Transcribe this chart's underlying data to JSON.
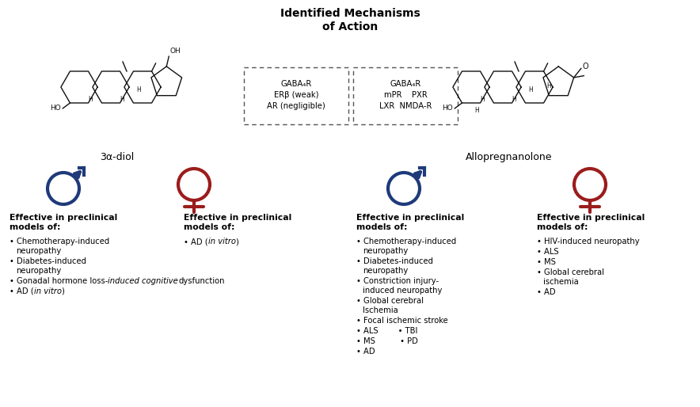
{
  "background_color": "#ffffff",
  "title": "Identified Mechanisms\nof Action",
  "male_color": "#1e3a7a",
  "female_color": "#9b1c1c",
  "box1_lines": [
    "GABA₄R",
    "ERβ (weak)",
    "AR (negligible)"
  ],
  "box2_lines": [
    "GABA₄R",
    "mPR    PXR",
    "LXR  NMDA-R"
  ],
  "compound1": "3α-diol",
  "compound2": "Allopregnanolone",
  "col_headers": [
    "Effective in preclinical\nmodels of:",
    "Effective in preclinical\nmodels of:",
    "Effective in preclinical\nmodels of:",
    "Effective in preclinical\nmodels of:"
  ],
  "col1_items": [
    [
      "Chemotherapy-induced",
      "neuropathy"
    ],
    [
      "Diabetes-induced",
      "neuropathy"
    ],
    [
      "Gonadal hormone loss-",
      "induced cognitive",
      "dysfunction"
    ],
    [
      "AD (",
      "in vitro",
      ")"
    ]
  ],
  "col2_items": [
    [
      "AD (",
      "in vitro",
      ")"
    ]
  ],
  "col3_items": [
    [
      "Chemotherapy-induced",
      "neuropathy"
    ],
    [
      "Diabetes-induced",
      "neuropathy"
    ],
    [
      "Constriction injury-",
      "induced neuropathy"
    ],
    [
      "Global cerebral",
      "Ischemia"
    ],
    [
      "Focal ischemic stroke"
    ],
    [
      "ALS        • TBI"
    ],
    [
      "MS          • PD"
    ],
    [
      "AD"
    ]
  ],
  "col4_items": [
    [
      "HIV-induced neuropathy"
    ],
    [
      "ALS"
    ],
    [
      "MS"
    ],
    [
      "Global cerebral",
      "ischemia"
    ],
    [
      "AD"
    ]
  ]
}
